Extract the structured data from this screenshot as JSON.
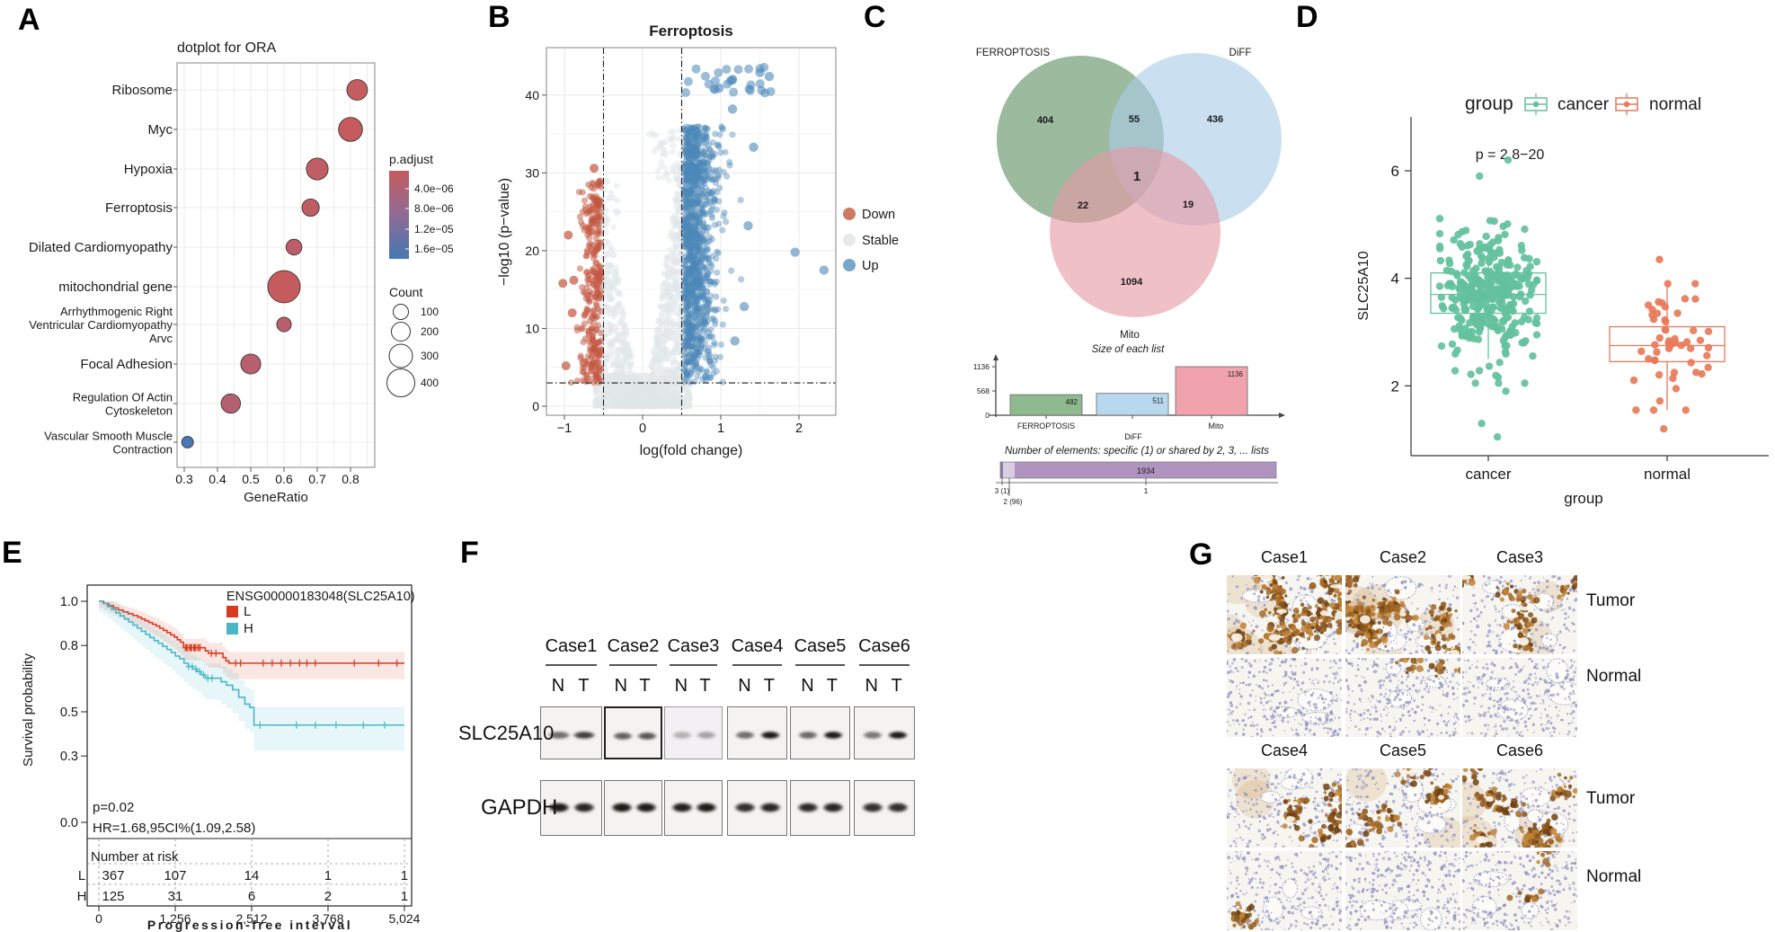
{
  "panel_letters": {
    "A": "A",
    "B": "B",
    "C": "C",
    "D": "D",
    "E": "E",
    "F": "F",
    "G": "G"
  },
  "chart_data": [
    {
      "id": "A",
      "type": "scatter",
      "title": "dotplot for ORA",
      "xlabel": "GeneRatio",
      "xticks": [
        "0.3",
        "0.4",
        "0.5",
        "0.6",
        "0.7",
        "0.8"
      ],
      "xtick_values": [
        0.3,
        0.4,
        0.5,
        0.6,
        0.7,
        0.8
      ],
      "rows": [
        {
          "label": [
            "Ribosome"
          ],
          "ratio": 0.82,
          "count": 170,
          "padj": 4.2e-06
        },
        {
          "label": [
            "Myc"
          ],
          "ratio": 0.8,
          "count": 230,
          "padj": 4e-06
        },
        {
          "label": [
            "Hypoxia"
          ],
          "ratio": 0.7,
          "count": 190,
          "padj": 4.6e-06
        },
        {
          "label": [
            "Ferroptosis"
          ],
          "ratio": 0.68,
          "count": 120,
          "padj": 4.8e-06
        },
        {
          "label": [
            "Dilated Cardiomyopathy"
          ],
          "ratio": 0.63,
          "count": 100,
          "padj": 5.2e-06
        },
        {
          "label": [
            "mitochondrial gene"
          ],
          "ratio": 0.6,
          "count": 420,
          "padj": 4e-06
        },
        {
          "label": [
            "Arrhythmogenic Right",
            "Ventricular Cardiomyopathy",
            "Arvc"
          ],
          "ratio": 0.6,
          "count": 85,
          "padj": 5.4e-06
        },
        {
          "label": [
            "Focal Adhesion"
          ],
          "ratio": 0.5,
          "count": 160,
          "padj": 5.8e-06
        },
        {
          "label": [
            "Regulation Of Actin",
            "Cytoskeleton"
          ],
          "ratio": 0.44,
          "count": 150,
          "padj": 6e-06
        },
        {
          "label": [
            "Vascular Smooth Muscle",
            "Contraction"
          ],
          "ratio": 0.31,
          "count": 55,
          "padj": 1.55e-05
        }
      ],
      "legend": {
        "color_title": "p.adjust",
        "color_ticks": [
          "4.0e−06",
          "8.0e−06",
          "1.2e−05",
          "1.6e−05"
        ],
        "size_title": "Count",
        "size_ticks": [
          "100",
          "200",
          "300",
          "400"
        ]
      },
      "color_scale": {
        "high": "#c65b5e",
        "mid": "#8f6b95",
        "low": "#4478b2",
        "domain": [
          4e-06,
          1.6e-05
        ]
      }
    },
    {
      "id": "B",
      "type": "scatter",
      "title": "Ferroptosis",
      "xlabel": "log(fold change)",
      "ylabel": "−log10 (p−value)",
      "xticks": [
        "−1",
        "0",
        "1",
        "2"
      ],
      "xtick_values": [
        -1,
        0,
        1,
        2
      ],
      "yticks": [
        "0",
        "10",
        "20",
        "30",
        "40"
      ],
      "ytick_values": [
        0,
        10,
        20,
        30,
        40
      ],
      "thresholds": {
        "x": [
          -0.5,
          0.5
        ],
        "y": 3
      },
      "legend": [
        {
          "label": "Down",
          "color": "#cd7a66"
        },
        {
          "label": "Stable",
          "color": "#e7eaed"
        },
        {
          "label": "Up",
          "color": "#7aa6c9"
        }
      ],
      "cloud": {
        "seed": 7,
        "stable": {
          "n": 1800,
          "color": "#e2e7ea",
          "opacity": 0.5,
          "r": 3.4
        },
        "up": {
          "n": 1150,
          "color": "#4d89b8",
          "opacity": 0.42,
          "r": 3.6
        },
        "down": {
          "n": 300,
          "color": "#c4563f",
          "opacity": 0.5,
          "r": 3.6
        },
        "up_top": {
          "n": 26,
          "x": [
            0.55,
            1.65
          ],
          "y": [
            40,
            43.8
          ]
        },
        "stable_top": {
          "n": 45,
          "x": [
            0.08,
            0.5
          ],
          "y": [
            29,
            35.5
          ]
        },
        "stable_top_left": {
          "n": 22,
          "x": [
            -0.55,
            -0.3
          ],
          "y": [
            23,
            29.5
          ]
        },
        "up_outliers": [
          [
            1.95,
            19.8
          ],
          [
            2.32,
            17.5
          ],
          [
            1.5,
            42.9
          ],
          [
            1.62,
            42.4
          ],
          [
            1.15,
            38.2
          ],
          [
            1.42,
            33.3
          ],
          [
            1.35,
            23.2
          ],
          [
            1.3,
            12.8
          ],
          [
            1.18,
            8.4
          ],
          [
            0.98,
            40.9
          ]
        ],
        "down_outliers": [
          [
            -0.95,
            22
          ],
          [
            -0.88,
            16.2
          ],
          [
            -0.9,
            12
          ],
          [
            -0.75,
            5.6
          ],
          [
            -0.98,
            5.2
          ],
          [
            -0.62,
            30.6
          ],
          [
            -1.02,
            15.8
          ]
        ]
      }
    },
    {
      "id": "C",
      "type": "venn",
      "sets": [
        {
          "label": "FERROPTOSIS",
          "fill": "#5e8f62",
          "label_color": "#3e7a44",
          "size": 482
        },
        {
          "label": "DiFF",
          "fill": "#a9cde6",
          "label_color": "#82b8d8",
          "size": 511
        },
        {
          "label": "Mito",
          "fill": "#e79aa4",
          "label_color": "#e24d4d",
          "size": 1136
        }
      ],
      "overlap_counts": {
        "a_only": "404",
        "b_only": "436",
        "c_only": "1094",
        "ab": "55",
        "ac": "22",
        "bc": "19",
        "abc": "1"
      },
      "size_chart": {
        "title": "Size of each list",
        "yticks": [
          "0",
          "568",
          "1136"
        ],
        "ytick_values": [
          0,
          568,
          1136
        ],
        "categories": [
          "FERROPTOSIS",
          "DiFF",
          "Mito"
        ],
        "values": [
          482,
          511,
          1136
        ],
        "bar_labels": [
          "482",
          "511",
          "1136"
        ],
        "colors": [
          "#8fba8f",
          "#b8d8ee",
          "#f0a3ac"
        ],
        "ymax": 1136
      },
      "elements_chart": {
        "title": "Number of elements: specific (1) or shared by 2, 3, ... lists",
        "segments": [
          {
            "tick": "3 (1)",
            "value": 1,
            "color": "#8a7d99"
          },
          {
            "tick": "2 (96)",
            "value": 96,
            "color": "#d9cde3"
          },
          {
            "tick": "1",
            "value": 1934,
            "color": "#b094c0"
          }
        ],
        "bar_label": "1934"
      }
    },
    {
      "id": "D",
      "type": "box",
      "legend_title": "group",
      "pvalue": "p = 2.8−20",
      "ylabel": "SLC25A10",
      "xlabel": "group",
      "yticks": [
        "2",
        "4",
        "6"
      ],
      "ytick_values": [
        2,
        4,
        6
      ],
      "groups": [
        {
          "label": "cancer",
          "color": "#63c19c",
          "n": 335,
          "median": 3.7,
          "q1": 3.35,
          "q3": 4.1,
          "lo": 2.5,
          "hi": 4.55,
          "mean": 3.72,
          "sd": 0.58,
          "extremes": [
            6.2,
            5.9,
            1.9,
            1.3,
            1.05
          ]
        },
        {
          "label": "normal",
          "color": "#e8795a",
          "n": 52,
          "median": 2.75,
          "q1": 2.45,
          "q3": 3.1,
          "lo": 1.55,
          "hi": 3.9,
          "mean": 2.78,
          "sd": 0.55,
          "extremes": [
            4.35,
            1.2
          ]
        }
      ],
      "seed": 11
    },
    {
      "id": "E",
      "type": "line",
      "legend_title": "ENSG00000183048(SLC25A10)",
      "ylabel": "Survival probability",
      "xlabel": "Progression-free interval",
      "yticks": [
        "1.0",
        "0.8",
        "0.5",
        "0.3",
        "0.0"
      ],
      "ytick_values": [
        1,
        0.8,
        0.5,
        0.3,
        0
      ],
      "xticks": [
        "0",
        "1,256",
        "2,512",
        "3,768",
        "5,024"
      ],
      "xtick_values": [
        0,
        1256,
        2512,
        3768,
        5024
      ],
      "stats": [
        "p=0.02",
        "HR=1.68,95CI%(1.09,2.58)"
      ],
      "risk_title": "Number at risk",
      "series": [
        {
          "name": "L",
          "color": "#d93a21",
          "ci": [
            0.03,
            0.1
          ],
          "steps": [
            [
              0,
              1
            ],
            [
              80,
              0.99
            ],
            [
              160,
              0.98
            ],
            [
              240,
              0.97
            ],
            [
              320,
              0.96
            ],
            [
              400,
              0.952
            ],
            [
              480,
              0.944
            ],
            [
              560,
              0.936
            ],
            [
              640,
              0.928
            ],
            [
              700,
              0.92
            ],
            [
              760,
              0.912
            ],
            [
              820,
              0.904
            ],
            [
              880,
              0.896
            ],
            [
              940,
              0.888
            ],
            [
              1000,
              0.878
            ],
            [
              1060,
              0.868
            ],
            [
              1120,
              0.858
            ],
            [
              1180,
              0.848
            ],
            [
              1240,
              0.838
            ],
            [
              1290,
              0.826
            ],
            [
              1340,
              0.815
            ],
            [
              1390,
              0.79
            ],
            [
              1700,
              0.79
            ],
            [
              1750,
              0.776
            ],
            [
              1800,
              0.765
            ],
            [
              1990,
              0.765
            ],
            [
              2040,
              0.745
            ],
            [
              2090,
              0.73
            ],
            [
              2140,
              0.72
            ],
            [
              5024,
              0.72
            ]
          ],
          "censors": [
            1420,
            1455,
            1490,
            1525,
            1560,
            1595,
            1630,
            1665,
            1440,
            1510,
            1575,
            1640,
            1850,
            1925,
            2250,
            2330,
            2700,
            2850,
            3000,
            3150,
            3300,
            3420,
            3560,
            4200,
            4600,
            4900
          ],
          "risk": [
            "367",
            "107",
            "14",
            "1",
            "1"
          ]
        },
        {
          "name": "H",
          "color": "#49b7c6",
          "ci": [
            0.05,
            0.13
          ],
          "steps": [
            [
              0,
              1
            ],
            [
              70,
              0.99
            ],
            [
              140,
              0.976
            ],
            [
              210,
              0.962
            ],
            [
              280,
              0.948
            ],
            [
              350,
              0.934
            ],
            [
              420,
              0.92
            ],
            [
              490,
              0.906
            ],
            [
              560,
              0.892
            ],
            [
              630,
              0.878
            ],
            [
              700,
              0.864
            ],
            [
              770,
              0.85
            ],
            [
              840,
              0.836
            ],
            [
              910,
              0.822
            ],
            [
              980,
              0.81
            ],
            [
              1050,
              0.796
            ],
            [
              1120,
              0.782
            ],
            [
              1190,
              0.768
            ],
            [
              1260,
              0.752
            ],
            [
              1330,
              0.74
            ],
            [
              1400,
              0.72
            ],
            [
              1470,
              0.705
            ],
            [
              1540,
              0.694
            ],
            [
              1610,
              0.682
            ],
            [
              1680,
              0.668
            ],
            [
              1750,
              0.652
            ],
            [
              1950,
              0.652
            ],
            [
              2010,
              0.636
            ],
            [
              2100,
              0.62
            ],
            [
              2200,
              0.6
            ],
            [
              2300,
              0.566
            ],
            [
              2400,
              0.535
            ],
            [
              2480,
              0.52
            ],
            [
              2550,
              0.44
            ],
            [
              5024,
              0.44
            ]
          ],
          "censors": [
            1475,
            1535,
            1595,
            1655,
            1720,
            1790,
            1860,
            2650,
            3250,
            3560,
            3900,
            4350,
            4700
          ],
          "risk": [
            "125",
            "31",
            "6",
            "2",
            "1"
          ]
        }
      ]
    }
  ],
  "western": {
    "cases": [
      "Case1",
      "Case2",
      "Case3",
      "Case4",
      "Case5",
      "Case6"
    ],
    "lanes": [
      "N",
      "T"
    ],
    "rows": [
      {
        "label": "SLC25A10",
        "intensity": [
          [
            0.6,
            0.8
          ],
          [
            0.65,
            0.7
          ],
          [
            0.28,
            0.34
          ],
          [
            0.6,
            0.97
          ],
          [
            0.62,
            0.97
          ],
          [
            0.55,
            0.97
          ]
        ]
      },
      {
        "label": "GAPDH",
        "intensity": [
          [
            0.97,
            0.92
          ],
          [
            0.97,
            0.97
          ],
          [
            0.95,
            0.97
          ],
          [
            0.88,
            0.92
          ],
          [
            0.9,
            0.92
          ],
          [
            0.88,
            0.88
          ]
        ]
      }
    ]
  },
  "ihc": {
    "row_labels": [
      "Tumor",
      "Normal",
      "Tumor",
      "Normal"
    ],
    "blocks": [
      {
        "cases": [
          "Case1",
          "Case2",
          "Case3"
        ],
        "rows": [
          [
            "strong",
            "strong",
            "med"
          ],
          [
            "light",
            "lightmed",
            "light"
          ]
        ]
      },
      {
        "cases": [
          "Case4",
          "Case5",
          "Case6"
        ],
        "rows": [
          [
            "med",
            "med",
            "medstrong"
          ],
          [
            "lightmed",
            "light",
            "lightmed"
          ]
        ]
      }
    ]
  }
}
